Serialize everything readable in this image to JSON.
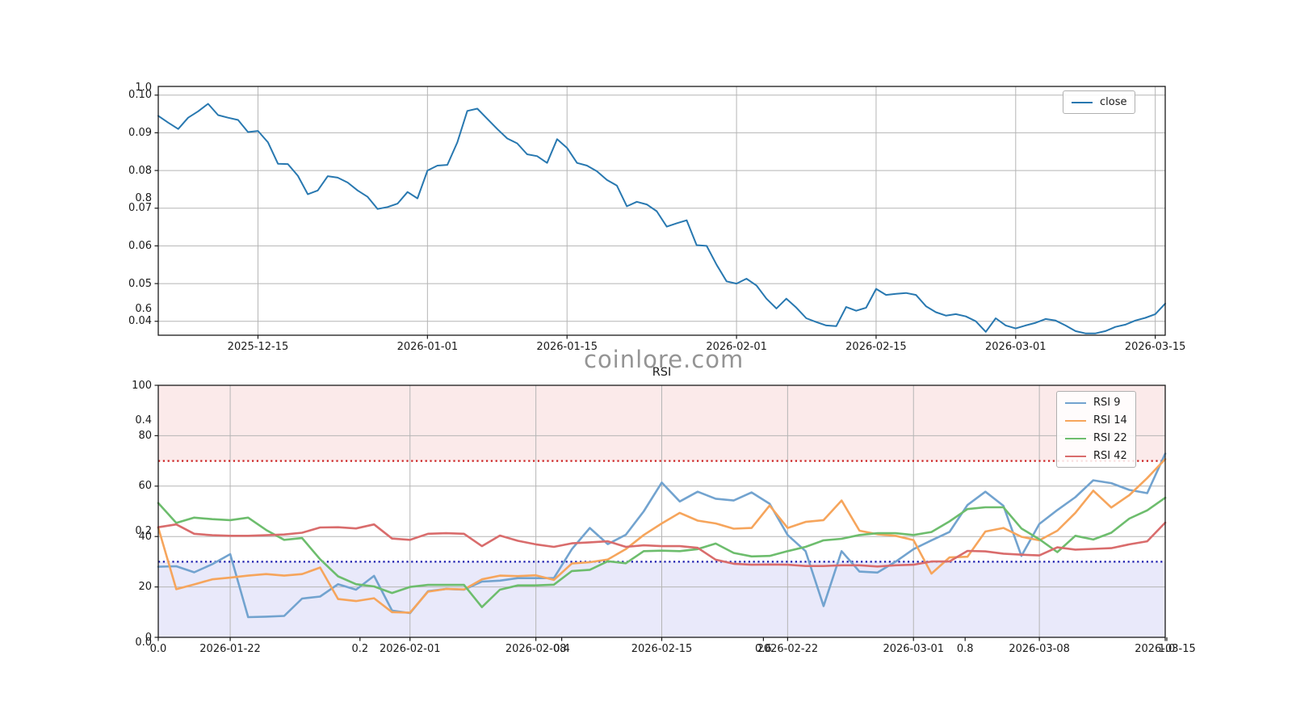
{
  "watermark": "coinlore.com",
  "overlay_axis": {
    "y_labels": [
      "1.0",
      "0.8",
      "0.6",
      "0.4",
      "0.2",
      "0.0"
    ],
    "x_labels": [
      "0.0",
      "0.2",
      "0.4",
      "0.6",
      "0.8",
      "1.0"
    ]
  },
  "chart_data": [
    {
      "type": "line",
      "title": "",
      "grid": true,
      "legend_position": "upper right",
      "x_start_date": "2025-12-05",
      "x_tick_labels": [
        "2025-12-15",
        "2026-01-01",
        "2026-01-15",
        "2026-02-01",
        "2026-02-15",
        "2026-03-01",
        "2026-03-15"
      ],
      "x_tick_day_index": [
        10,
        27,
        41,
        58,
        72,
        86,
        100
      ],
      "y_tick_labels": [
        "0.10",
        "0.09",
        "0.08",
        "0.07",
        "0.06",
        "0.05",
        "0.04"
      ],
      "y_ticks": [
        0.1,
        0.09,
        0.08,
        0.07,
        0.06,
        0.05,
        0.04
      ],
      "ylim": [
        0.0363,
        0.1023
      ],
      "series": [
        {
          "name": "close",
          "color": "#2878b0",
          "width": 2,
          "values": [
            0.0945,
            0.0927,
            0.091,
            0.094,
            0.0957,
            0.0977,
            0.0947,
            0.094,
            0.0934,
            0.0902,
            0.0905,
            0.0875,
            0.0818,
            0.0817,
            0.0786,
            0.0737,
            0.0747,
            0.0785,
            0.0781,
            0.0768,
            0.0747,
            0.073,
            0.0698,
            0.0703,
            0.0712,
            0.0743,
            0.0726,
            0.08,
            0.0813,
            0.0815,
            0.0875,
            0.0958,
            0.0964,
            0.0937,
            0.091,
            0.0885,
            0.0872,
            0.0843,
            0.0838,
            0.082,
            0.0883,
            0.086,
            0.082,
            0.0813,
            0.0798,
            0.0775,
            0.076,
            0.0705,
            0.0717,
            0.071,
            0.0692,
            0.0651,
            0.066,
            0.0668,
            0.0602,
            0.06,
            0.055,
            0.0506,
            0.05,
            0.0513,
            0.0495,
            0.046,
            0.0434,
            0.046,
            0.0436,
            0.0408,
            0.0398,
            0.0389,
            0.0387,
            0.0438,
            0.0428,
            0.0436,
            0.0486,
            0.047,
            0.0473,
            0.0475,
            0.047,
            0.044,
            0.0424,
            0.0415,
            0.0419,
            0.0413,
            0.04,
            0.0372,
            0.0408,
            0.0389,
            0.0381,
            0.0389,
            0.0396,
            0.0406,
            0.0402,
            0.0389,
            0.0374,
            0.0368,
            0.0368,
            0.0374,
            0.0385,
            0.0391,
            0.0402,
            0.0409,
            0.0419,
            0.0447
          ]
        }
      ]
    },
    {
      "type": "line",
      "title": "RSI",
      "grid": true,
      "legend_position": "upper right",
      "x_start_date": "2026-01-18",
      "x_tick_labels": [
        "2026-01-22",
        "2026-02-01",
        "2026-02-08",
        "2026-02-15",
        "2026-02-22",
        "2026-03-01",
        "2026-03-08",
        "2026-03-15"
      ],
      "x_tick_day_index": [
        4,
        14,
        21,
        28,
        35,
        42,
        49,
        56
      ],
      "y_tick_labels": [
        "100",
        "80",
        "60",
        "40",
        "20",
        "0"
      ],
      "y_ticks": [
        100,
        80,
        60,
        40,
        20,
        0
      ],
      "ylim": [
        0,
        100
      ],
      "overbought_level": 70,
      "oversold_level": 30,
      "overbought_line_color": "#cc2222",
      "oversold_line_color": "#1a1aae",
      "overbought_band_color": "rgba(222,60,60,0.11)",
      "oversold_band_color": "rgba(70,70,215,0.12)",
      "series": [
        {
          "name": "RSI 9",
          "color": "#72a3cf",
          "width": 2.6,
          "values": [
            28.0,
            28.2,
            25.8,
            29.0,
            33.0,
            8.0,
            8.2,
            8.5,
            15.4,
            16.2,
            21.1,
            18.9,
            24.4,
            10.6,
            9.6,
            18.3,
            19.2,
            18.9,
            22.1,
            22.5,
            23.5,
            23.5,
            23.5,
            35.0,
            43.4,
            37.0,
            40.7,
            50.0,
            61.4,
            53.9,
            57.8,
            55.0,
            54.3,
            57.5,
            53.0,
            40.6,
            34.2,
            12.4,
            34.2,
            26.1,
            25.7,
            30.0,
            35.0,
            38.5,
            41.8,
            52.5,
            57.8,
            52.2,
            32.3,
            45.0,
            50.5,
            55.6,
            62.3,
            61.2,
            58.5,
            57.2,
            72.9
          ]
        },
        {
          "name": "RSI 14",
          "color": "#f6a55c",
          "width": 2.6,
          "values": [
            43.5,
            19.1,
            21.0,
            23.0,
            23.7,
            24.5,
            25.1,
            24.5,
            25.1,
            27.7,
            15.2,
            14.4,
            15.5,
            10.0,
            9.8,
            18.1,
            19.2,
            19.0,
            23.0,
            24.5,
            24.3,
            24.6,
            22.8,
            29.3,
            29.8,
            30.9,
            35.0,
            40.6,
            45.2,
            49.4,
            46.3,
            45.2,
            43.1,
            43.4,
            52.3,
            43.4,
            45.8,
            46.5,
            54.3,
            42.3,
            40.9,
            40.3,
            38.6,
            25.3,
            31.7,
            32.0,
            42.0,
            43.4,
            39.9,
            38.5,
            42.3,
            49.4,
            58.2,
            51.5,
            56.4,
            63.2,
            70.7
          ]
        },
        {
          "name": "RSI 22",
          "color": "#6dbd6d",
          "width": 2.6,
          "values": [
            53.3,
            45.4,
            47.5,
            46.9,
            46.5,
            47.5,
            42.6,
            38.7,
            39.4,
            31.0,
            24.2,
            21.1,
            20.2,
            17.6,
            20.0,
            20.8,
            20.8,
            20.8,
            12.0,
            18.9,
            20.6,
            20.6,
            20.9,
            26.3,
            26.8,
            30.2,
            29.4,
            34.2,
            34.4,
            34.2,
            35.0,
            37.2,
            33.5,
            32.1,
            32.3,
            34.2,
            35.9,
            38.5,
            39.1,
            40.6,
            41.3,
            41.3,
            40.6,
            41.8,
            46.0,
            50.9,
            51.6,
            51.6,
            43.2,
            38.9,
            33.8,
            40.3,
            38.8,
            41.5,
            47.1,
            50.4,
            55.4
          ]
        },
        {
          "name": "RSI 42",
          "color": "#d96c6c",
          "width": 2.6,
          "values": [
            43.7,
            44.8,
            41.1,
            40.5,
            40.3,
            40.3,
            40.5,
            40.8,
            41.5,
            43.6,
            43.7,
            43.2,
            44.8,
            39.2,
            38.7,
            41.1,
            41.3,
            41.1,
            36.2,
            40.4,
            38.3,
            36.9,
            35.9,
            37.3,
            37.7,
            38.1,
            35.9,
            36.5,
            36.2,
            36.2,
            35.5,
            30.8,
            29.2,
            28.8,
            28.9,
            28.8,
            28.3,
            28.3,
            28.6,
            28.6,
            28.1,
            28.6,
            28.8,
            30.1,
            30.1,
            34.3,
            34.1,
            33.2,
            32.8,
            32.5,
            35.7,
            34.8,
            35.1,
            35.4,
            36.9,
            38.1,
            45.5
          ]
        }
      ]
    }
  ]
}
